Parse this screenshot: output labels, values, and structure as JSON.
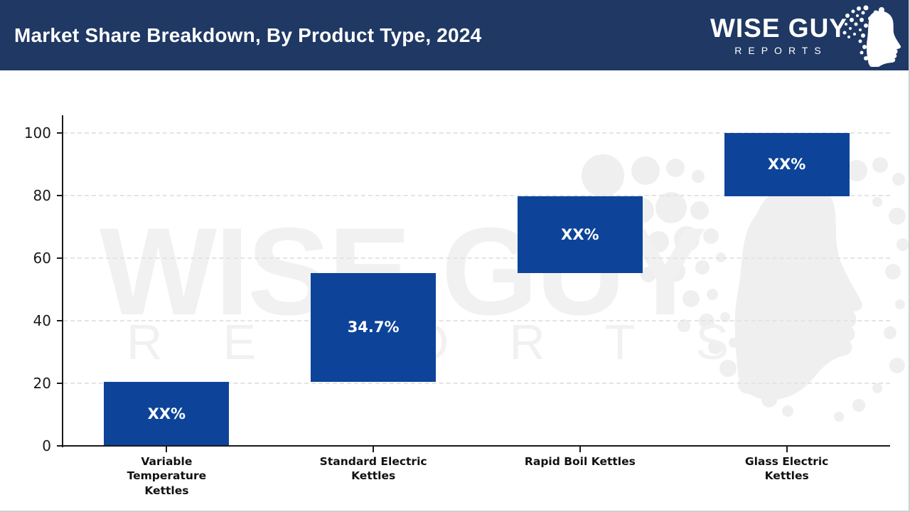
{
  "header": {
    "title": "Market Share Breakdown, By Product Type, 2024",
    "bg_color": "#1f3864",
    "logo": {
      "line1": "WISE GUY",
      "line2": "REPORTS"
    }
  },
  "watermark": {
    "line1": "WISE GUY",
    "line2": "REPORTS"
  },
  "chart_data": {
    "type": "bar",
    "subtype": "waterfall",
    "title": "Market Share Breakdown, By Product Type, 2024",
    "categories": [
      "Variable\nTemperature\nKettles",
      "Standard Electric\nKettles",
      "Rapid Boil Kettles",
      "Glass Electric\nKettles"
    ],
    "segments": [
      {
        "category": "Variable Temperature Kettles",
        "base": 0,
        "value": 20.5,
        "label": "XX%"
      },
      {
        "category": "Standard Electric Kettles",
        "base": 20.5,
        "value": 34.7,
        "label": "34.7%"
      },
      {
        "category": "Rapid Boil Kettles",
        "base": 55.2,
        "value": 24.6,
        "label": "XX%"
      },
      {
        "category": "Glass Electric Kettles",
        "base": 79.8,
        "value": 20.2,
        "label": "XX%"
      }
    ],
    "yticks": [
      0,
      20,
      40,
      60,
      80,
      100
    ],
    "ylim": [
      0,
      105
    ],
    "xlabel": "",
    "ylabel": "",
    "bar_color": "#0d4499",
    "grid": "horizontal-dashed",
    "legend": "none"
  }
}
